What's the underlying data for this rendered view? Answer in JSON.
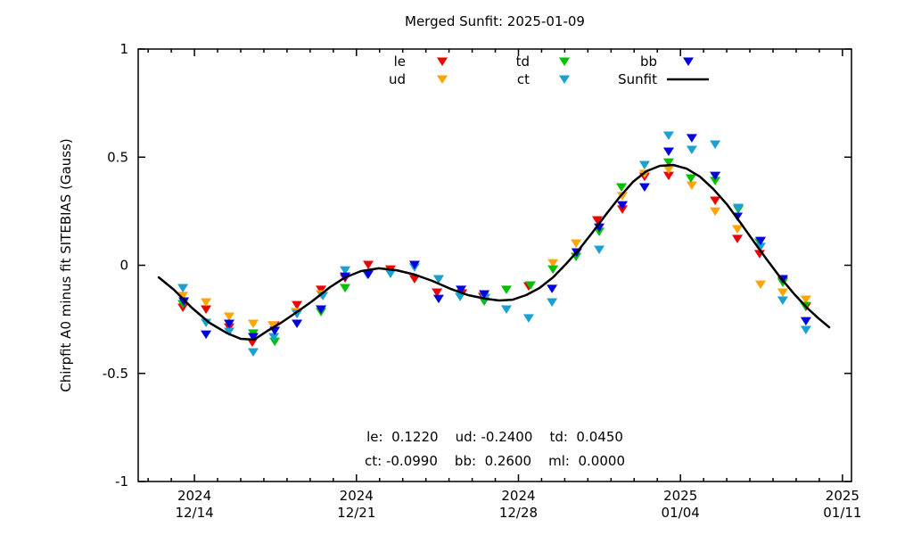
{
  "window": {
    "background": "#ffffff"
  },
  "chart_data": {
    "type": "scatter",
    "title": "Merged Sunfit: 2025-01-09",
    "xlabel": "",
    "ylabel": "Chirpfit A0 minus fit SITEBIAS (Gauss)",
    "ylim": [
      -1,
      1
    ],
    "xlim_days": [
      -2.43,
      28.39
    ],
    "x_unit": "days relative to 2024-12-14",
    "grid": "off",
    "legend_position": "top-center-inside",
    "y_ticks": [
      {
        "v": 1,
        "label": "1"
      },
      {
        "v": 0.5,
        "label": "0.5"
      },
      {
        "v": 0,
        "label": "0"
      },
      {
        "v": -0.5,
        "label": "-0.5"
      },
      {
        "v": -1,
        "label": "-1"
      }
    ],
    "x_major_ticks": [
      {
        "day": 0,
        "year": "2024",
        "date": "12/14"
      },
      {
        "day": 7,
        "year": "2024",
        "date": "12/21"
      },
      {
        "day": 14,
        "year": "2024",
        "date": "12/28"
      },
      {
        "day": 21,
        "year": "2025",
        "date": "01/04"
      },
      {
        "day": 28,
        "year": "2025",
        "date": "01/11"
      }
    ],
    "x_minor_tick_interval_days": 1,
    "legend": [
      {
        "label": "le",
        "marker": "triangle-down",
        "color": "#ee0000"
      },
      {
        "label": "ud",
        "marker": "triangle-down",
        "color": "#ffa400"
      },
      {
        "label": "td",
        "marker": "triangle-down",
        "color": "#00c000"
      },
      {
        "label": "ct",
        "marker": "triangle-down",
        "color": "#19a1d2"
      },
      {
        "label": "bb",
        "marker": "triangle-down",
        "color": "#0000e0"
      },
      {
        "label": "Sunfit",
        "marker": "line",
        "color": "#000000"
      }
    ],
    "series": [
      {
        "name": "le",
        "color": "#ee0000",
        "marker": "triangle-down",
        "points": [
          [
            -0.5,
            -0.196
          ],
          [
            0.5,
            -0.204
          ],
          [
            1.5,
            -0.287
          ],
          [
            2.5,
            -0.357
          ],
          [
            3.45,
            -0.278
          ],
          [
            4.43,
            -0.184
          ],
          [
            5.47,
            -0.113
          ],
          [
            6.51,
            -0.06
          ],
          [
            7.51,
            0.002
          ],
          [
            8.47,
            -0.019
          ],
          [
            9.51,
            -0.064
          ],
          [
            10.48,
            -0.126
          ],
          [
            11.56,
            -0.13
          ],
          [
            12.48,
            -0.146
          ],
          [
            14.44,
            -0.097
          ],
          [
            17.41,
            0.208
          ],
          [
            18.49,
            0.258
          ],
          [
            19.45,
            0.41
          ],
          [
            20.49,
            0.414
          ],
          [
            22.5,
            0.299
          ],
          [
            23.46,
            0.122
          ],
          [
            24.42,
            0.052
          ],
          [
            25.42,
            -0.072
          ],
          [
            26.42,
            -0.192
          ]
        ]
      },
      {
        "name": "ud",
        "color": "#ffa400",
        "marker": "triangle-down",
        "points": [
          [
            -0.5,
            -0.142
          ],
          [
            0.5,
            -0.171
          ],
          [
            1.5,
            -0.237
          ],
          [
            2.54,
            -0.27
          ],
          [
            3.39,
            -0.278
          ],
          [
            4.39,
            -0.216
          ],
          [
            5.47,
            -0.134
          ],
          [
            15.49,
            0.01
          ],
          [
            16.49,
            0.101
          ],
          [
            18.49,
            0.32
          ],
          [
            19.45,
            0.423
          ],
          [
            20.49,
            0.443
          ],
          [
            21.49,
            0.369
          ],
          [
            22.5,
            0.249
          ],
          [
            23.46,
            0.167
          ],
          [
            24.46,
            -0.089
          ],
          [
            25.42,
            -0.126
          ],
          [
            26.42,
            -0.159
          ]
        ]
      },
      {
        "name": "td",
        "color": "#00c000",
        "marker": "triangle-down",
        "points": [
          [
            -0.5,
            -0.179
          ],
          [
            2.54,
            -0.315
          ],
          [
            3.47,
            -0.353
          ],
          [
            5.47,
            -0.216
          ],
          [
            6.51,
            -0.105
          ],
          [
            10.55,
            -0.064
          ],
          [
            12.52,
            -0.167
          ],
          [
            13.48,
            -0.113
          ],
          [
            14.52,
            -0.093
          ],
          [
            15.49,
            -0.019
          ],
          [
            16.49,
            0.039
          ],
          [
            17.49,
            0.155
          ],
          [
            18.45,
            0.361
          ],
          [
            20.49,
            0.476
          ],
          [
            21.45,
            0.402
          ],
          [
            22.5,
            0.39
          ],
          [
            23.5,
            0.258
          ],
          [
            24.42,
            0.105
          ],
          [
            25.42,
            -0.08
          ],
          [
            26.39,
            -0.188
          ]
        ]
      },
      {
        "name": "ct",
        "color": "#19a1d2",
        "marker": "triangle-down",
        "points": [
          [
            -0.5,
            -0.105
          ],
          [
            0.5,
            -0.266
          ],
          [
            1.5,
            -0.307
          ],
          [
            2.54,
            -0.402
          ],
          [
            3.43,
            -0.332
          ],
          [
            4.43,
            -0.225
          ],
          [
            5.55,
            -0.142
          ],
          [
            6.51,
            -0.023
          ],
          [
            7.47,
            -0.043
          ],
          [
            8.47,
            -0.039
          ],
          [
            9.51,
            -0.01
          ],
          [
            10.55,
            -0.064
          ],
          [
            11.48,
            -0.146
          ],
          [
            12.56,
            -0.151
          ],
          [
            13.48,
            -0.204
          ],
          [
            14.44,
            -0.245
          ],
          [
            15.45,
            -0.171
          ],
          [
            17.49,
            0.072
          ],
          [
            19.45,
            0.464
          ],
          [
            20.49,
            0.6
          ],
          [
            21.49,
            0.534
          ],
          [
            22.5,
            0.559
          ],
          [
            23.5,
            0.266
          ],
          [
            24.46,
            0.085
          ],
          [
            25.42,
            -0.163
          ],
          [
            26.42,
            -0.299
          ]
        ]
      },
      {
        "name": "bb",
        "color": "#0000e0",
        "marker": "triangle-down",
        "points": [
          [
            -0.46,
            -0.167
          ],
          [
            0.5,
            -0.32
          ],
          [
            1.5,
            -0.27
          ],
          [
            2.54,
            -0.332
          ],
          [
            3.47,
            -0.303
          ],
          [
            4.43,
            -0.27
          ],
          [
            5.47,
            -0.204
          ],
          [
            6.51,
            -0.052
          ],
          [
            7.51,
            -0.043
          ],
          [
            9.51,
            0.002
          ],
          [
            10.55,
            -0.155
          ],
          [
            11.52,
            -0.113
          ],
          [
            12.52,
            -0.134
          ],
          [
            15.45,
            -0.109
          ],
          [
            16.52,
            0.06
          ],
          [
            17.49,
            0.175
          ],
          [
            18.49,
            0.278
          ],
          [
            19.45,
            0.361
          ],
          [
            20.49,
            0.526
          ],
          [
            21.49,
            0.588
          ],
          [
            22.5,
            0.414
          ],
          [
            23.46,
            0.225
          ],
          [
            24.46,
            0.113
          ],
          [
            25.42,
            -0.064
          ],
          [
            26.42,
            -0.258
          ]
        ]
      }
    ],
    "fit": {
      "name": "Sunfit",
      "color": "#000000",
      "line_width": 2.5,
      "points": [
        [
          -1.54,
          -0.056
        ],
        [
          -0.89,
          -0.113
        ],
        [
          -0.12,
          -0.196
        ],
        [
          0.65,
          -0.266
        ],
        [
          1.43,
          -0.315
        ],
        [
          2.0,
          -0.34
        ],
        [
          2.58,
          -0.344
        ],
        [
          3.16,
          -0.303
        ],
        [
          3.74,
          -0.266
        ],
        [
          4.43,
          -0.216
        ],
        [
          5.08,
          -0.167
        ],
        [
          5.86,
          -0.101
        ],
        [
          6.51,
          -0.056
        ],
        [
          7.2,
          -0.027
        ],
        [
          7.97,
          -0.014
        ],
        [
          8.74,
          -0.023
        ],
        [
          9.51,
          -0.043
        ],
        [
          10.28,
          -0.072
        ],
        [
          11.06,
          -0.109
        ],
        [
          11.83,
          -0.138
        ],
        [
          12.6,
          -0.155
        ],
        [
          13.17,
          -0.163
        ],
        [
          13.75,
          -0.159
        ],
        [
          14.33,
          -0.138
        ],
        [
          14.91,
          -0.105
        ],
        [
          15.49,
          -0.056
        ],
        [
          16.06,
          0.006
        ],
        [
          16.64,
          0.076
        ],
        [
          17.22,
          0.155
        ],
        [
          17.8,
          0.237
        ],
        [
          18.37,
          0.315
        ],
        [
          18.95,
          0.386
        ],
        [
          19.53,
          0.435
        ],
        [
          20.11,
          0.46
        ],
        [
          20.69,
          0.464
        ],
        [
          21.26,
          0.447
        ],
        [
          21.84,
          0.41
        ],
        [
          22.42,
          0.353
        ],
        [
          23.0,
          0.283
        ],
        [
          23.57,
          0.2
        ],
        [
          24.15,
          0.113
        ],
        [
          24.73,
          0.027
        ],
        [
          25.31,
          -0.056
        ],
        [
          25.89,
          -0.13
        ],
        [
          26.46,
          -0.196
        ],
        [
          26.96,
          -0.245
        ],
        [
          27.43,
          -0.287
        ]
      ]
    },
    "fit_coefficients": {
      "le": 0.122,
      "ud": -0.24,
      "td": 0.045,
      "ct": -0.099,
      "bb": 0.26,
      "ml": 0.0
    },
    "annotations": [
      "le:  0.1220    ud: -0.2400    td:  0.0450",
      "ct: -0.0990    bb:  0.2600    ml:  0.0000"
    ]
  }
}
